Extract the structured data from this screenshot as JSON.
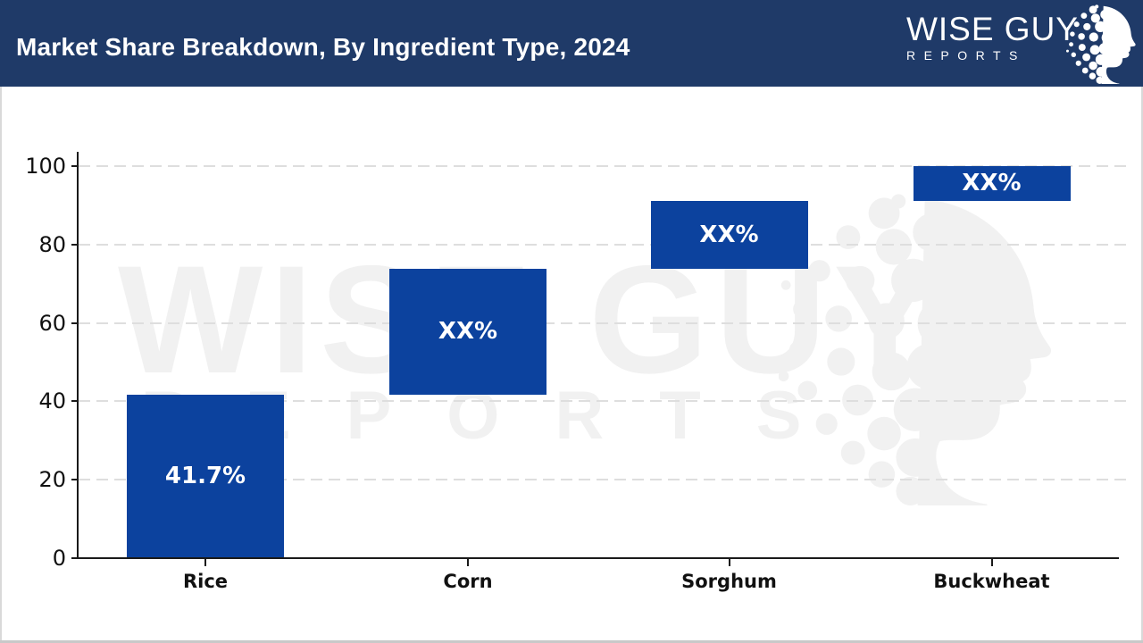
{
  "header": {
    "title": "Market Share Breakdown, By Ingredient Type, 2024",
    "logo": {
      "line1": "WISE GUY",
      "line2": "REPORTS"
    }
  },
  "watermark": {
    "line1": "WISE GUY",
    "line2": "REPORTS"
  },
  "colors": {
    "header_bg": "#1f3a68",
    "bar": "#0c429e",
    "bar_label": "#ffffff",
    "grid": "#dedede",
    "axis": "#1a1a1a",
    "watermark": "#f1f1f1"
  },
  "chart_data": {
    "type": "bar",
    "subtype": "floating-waterfall",
    "title": "Market Share Breakdown, By Ingredient Type, 2024",
    "categories": [
      "Rice",
      "Corn",
      "Sorghum",
      "Buckwheat"
    ],
    "segments": [
      {
        "category": "Rice",
        "start": 0,
        "end": 41.7,
        "label": "41.7%"
      },
      {
        "category": "Corn",
        "start": 41.7,
        "end": 73.8,
        "label": "XX%"
      },
      {
        "category": "Sorghum",
        "start": 73.8,
        "end": 91.2,
        "label": "XX%"
      },
      {
        "category": "Buckwheat",
        "start": 91.2,
        "end": 100,
        "label": "XX%"
      }
    ],
    "xlabel": "",
    "ylabel": "",
    "ylim": [
      0,
      100
    ],
    "yticks": [
      0,
      20,
      40,
      60,
      80,
      100
    ],
    "grid": "horizontal-dashed",
    "legend": false
  }
}
